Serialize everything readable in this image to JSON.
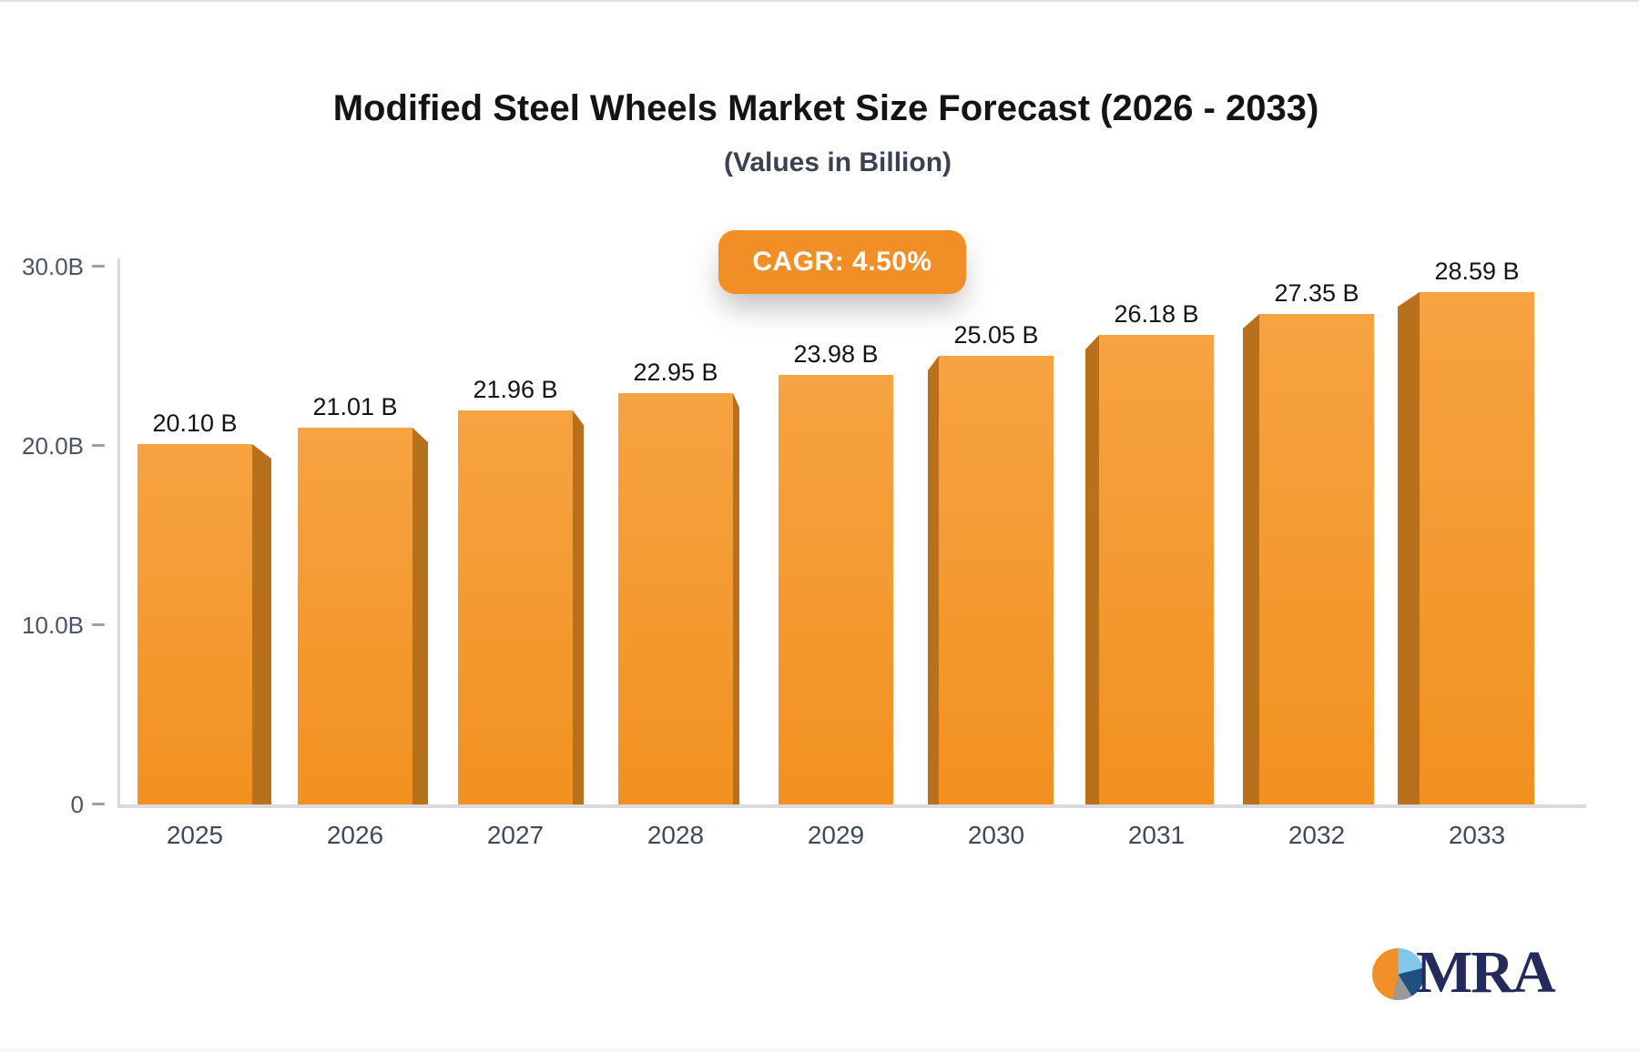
{
  "header": {
    "title": "Modified Steel Wheels Market Size Forecast (2026 - 2033)",
    "subtitle": "(Values in Billion)"
  },
  "badge": {
    "label": "CAGR: 4.50%"
  },
  "chart_data": {
    "type": "bar",
    "title": "Modified Steel Wheels Market Size Forecast (2026 - 2033)",
    "subtitle": "(Values in Billion)",
    "annotation": "CAGR: 4.50%",
    "unit": "Billion",
    "categories": [
      "2025",
      "2026",
      "2027",
      "2028",
      "2029",
      "2030",
      "2031",
      "2032",
      "2033"
    ],
    "values": [
      20.1,
      21.01,
      21.96,
      22.95,
      23.98,
      25.05,
      26.18,
      27.35,
      28.59
    ],
    "value_labels": [
      "20.10 B",
      "21.01 B",
      "21.96 B",
      "22.95 B",
      "23.98 B",
      "25.05 B",
      "26.18 B",
      "27.35 B",
      "28.59 B"
    ],
    "xlabel": "",
    "ylabel": "",
    "ylim": [
      0,
      30
    ],
    "yticks": [
      {
        "value": 0,
        "label": "0"
      },
      {
        "value": 10,
        "label": "10.0B"
      },
      {
        "value": 20,
        "label": "20.0B"
      },
      {
        "value": 30,
        "label": "30.0B"
      }
    ],
    "grid": false,
    "legend": false,
    "bar_style": "3d-extruded",
    "colors": {
      "bar_face_top": "#F6A342",
      "bar_face_bottom": "#F29120",
      "bar_side": "#B8701A",
      "badge_bg": "#F28E26",
      "badge_text": "#FFFFFF",
      "axis_line": "#D9DBE0",
      "tick": "#9BA1AC",
      "y_label": "#4A5462",
      "x_label": "#3D4A5C",
      "value_label": "#111317",
      "title": "#121417",
      "subtitle": "#3A4250"
    }
  },
  "logo": {
    "text": "MRA",
    "text_color": "#242B5C",
    "pie_colors": [
      "#F18F28",
      "#82C7EA",
      "#20507E",
      "#98999B"
    ]
  }
}
